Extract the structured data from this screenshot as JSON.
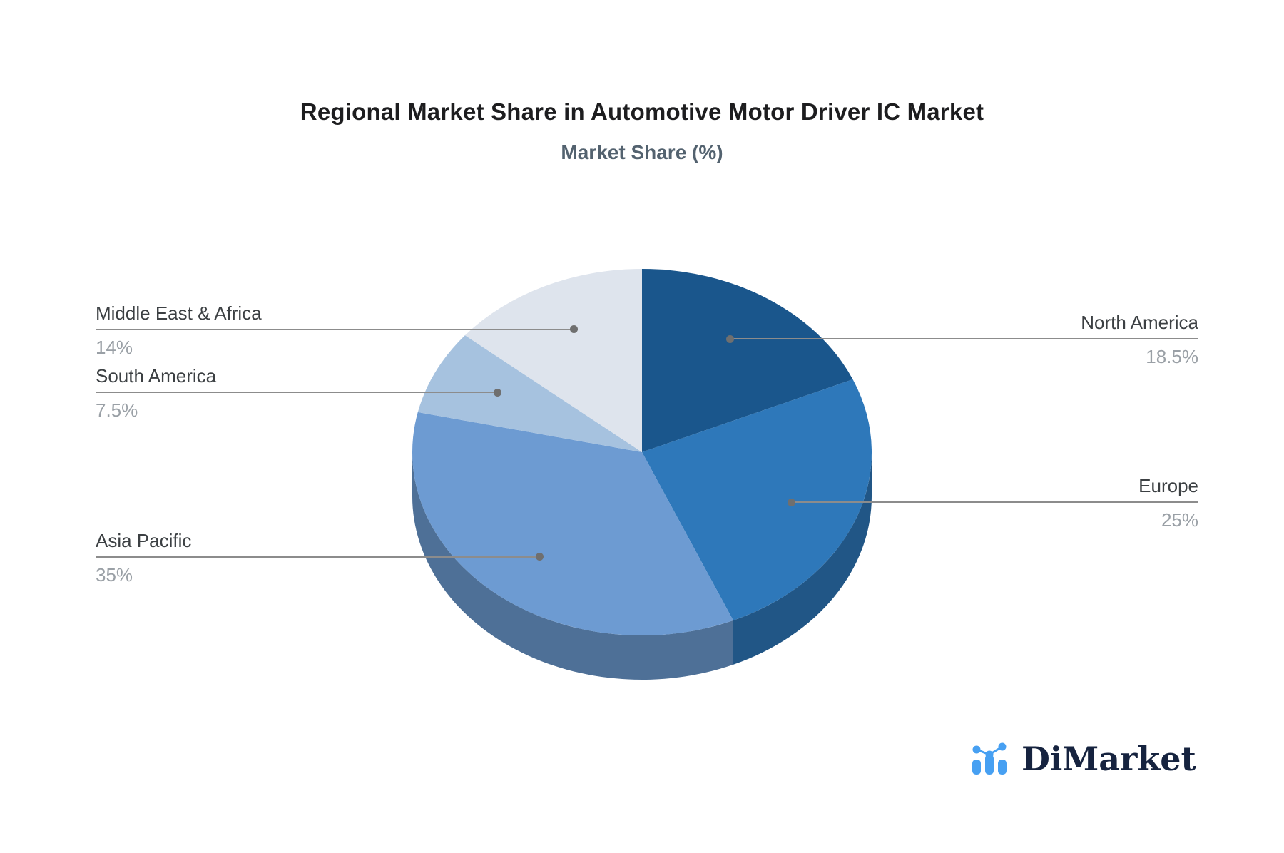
{
  "header": {
    "title": "Regional Market Share in Automotive Motor Driver IC Market",
    "subtitle": "Market Share (%)"
  },
  "chart_data": {
    "type": "pie",
    "title": "Regional Market Share in Automotive Motor Driver IC Market",
    "subtitle": "Market Share (%)",
    "unit": "%",
    "style": "3d-depth",
    "start_angle_deg": 0,
    "direction": "clockwise",
    "leader_line_color": "#8c8c8c",
    "leader_dot_color": "#6f6f6f",
    "label_color": "#3c4043",
    "value_color": "#9aa0a6",
    "slices": [
      {
        "label": "North America",
        "value": 18.5,
        "display_value": "18.5%",
        "color": "#1a568c",
        "label_side": "right"
      },
      {
        "label": "Europe",
        "value": 25,
        "display_value": "25%",
        "color": "#2e78ba",
        "label_side": "right"
      },
      {
        "label": "Asia Pacific",
        "value": 35,
        "display_value": "35%",
        "color": "#6d9bd2",
        "label_side": "left"
      },
      {
        "label": "South America",
        "value": 7.5,
        "display_value": "7.5%",
        "color": "#a6c2df",
        "label_side": "left"
      },
      {
        "label": "Middle East & Africa",
        "value": 14,
        "display_value": "14%",
        "color": "#dee4ed",
        "label_side": "left"
      }
    ]
  },
  "branding": {
    "name": "DiMarket",
    "icon": "bar-chart-logo-icon",
    "icon_color": "#47a0f2",
    "text_color": "#16233f"
  }
}
